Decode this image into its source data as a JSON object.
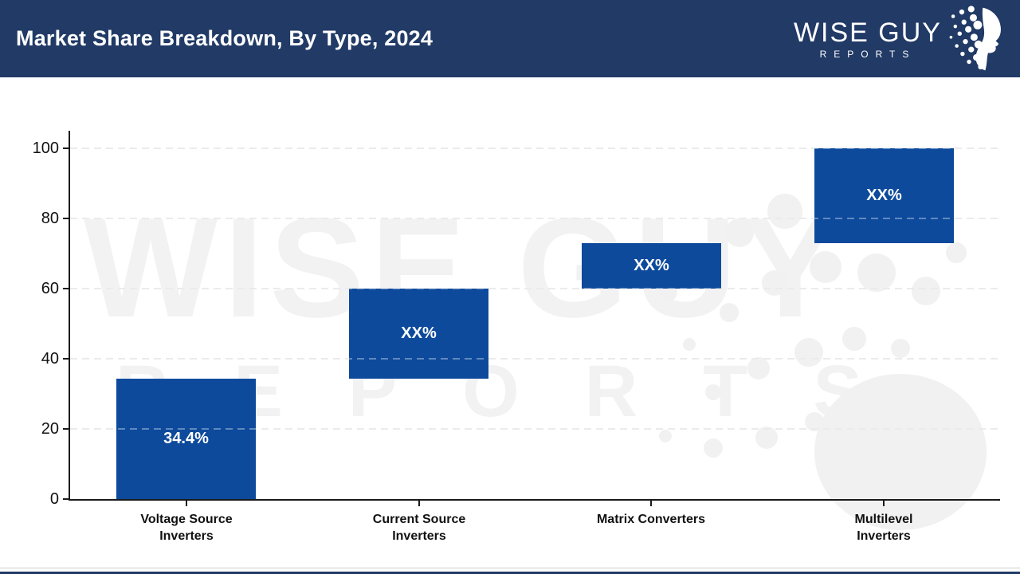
{
  "header": {
    "title": "Market Share Breakdown, By Type, 2024",
    "logo": {
      "name": "WISE GUY",
      "sub": "REPORTS",
      "face_icon": "dotted-head-profile"
    },
    "bg_color": "#213a66"
  },
  "watermark": {
    "line1": "WISE GUY",
    "line2": "REPORTS",
    "face_icon": "dotted-head-profile"
  },
  "chart_data": {
    "type": "bar",
    "subtype": "waterfall",
    "title": "Market Share Breakdown, By Type, 2024",
    "categories": [
      "Voltage Source\nInverters",
      "Current Source\nInverters",
      "Matrix Converters",
      "Multilevel\nInverters"
    ],
    "segments": [
      {
        "category": "Voltage Source Inverters",
        "start": 0,
        "end": 34.4,
        "value": 34.4,
        "label": "34.4%"
      },
      {
        "category": "Current Source Inverters",
        "start": 34.4,
        "end": 60,
        "value": 25.6,
        "label": "XX%"
      },
      {
        "category": "Matrix Converters",
        "start": 60,
        "end": 73,
        "value": 13.0,
        "label": "XX%"
      },
      {
        "category": "Multilevel Inverters",
        "start": 73,
        "end": 100,
        "value": 27.0,
        "label": "XX%"
      }
    ],
    "xlabel": "",
    "ylabel": "",
    "yticks": [
      0,
      20,
      40,
      60,
      80,
      100
    ],
    "ylim": [
      0,
      105
    ],
    "grid": "horizontal-dashed",
    "legend_position": "none",
    "bar_color": "#0d4a9c",
    "bar_label_color": "#ffffff",
    "axis_color": "#1a1a1a",
    "grid_color": "#e0e0e0"
  }
}
